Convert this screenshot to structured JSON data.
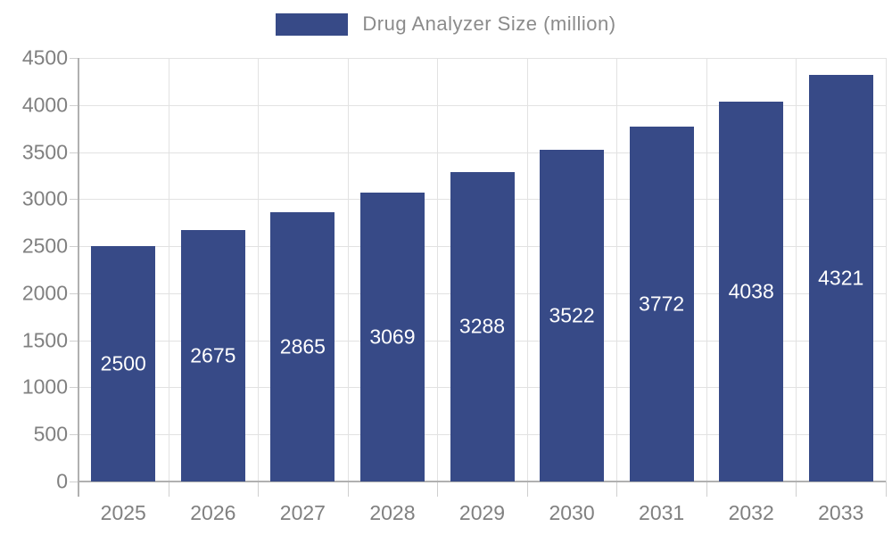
{
  "chart_data": {
    "type": "bar",
    "title": "Drug Analyzer Size (million)",
    "categories": [
      "2025",
      "2026",
      "2027",
      "2028",
      "2029",
      "2030",
      "2031",
      "2032",
      "2033"
    ],
    "values": [
      2500,
      2675,
      2865,
      3069,
      3288,
      3522,
      3772,
      4038,
      4321
    ],
    "xlabel": "",
    "ylabel": "",
    "ylim": [
      0,
      4500
    ],
    "yticks": [
      0,
      500,
      1000,
      1500,
      2000,
      2500,
      3000,
      3500,
      4000,
      4500
    ],
    "grid": "on",
    "legend_position": "top-center",
    "bar_color": "#374a87",
    "bar_label_color": "#ffffff",
    "axis_text_color": "#808080",
    "gridline_color": "#e2e2e2",
    "axis_line_color": "#b0b0b0"
  }
}
